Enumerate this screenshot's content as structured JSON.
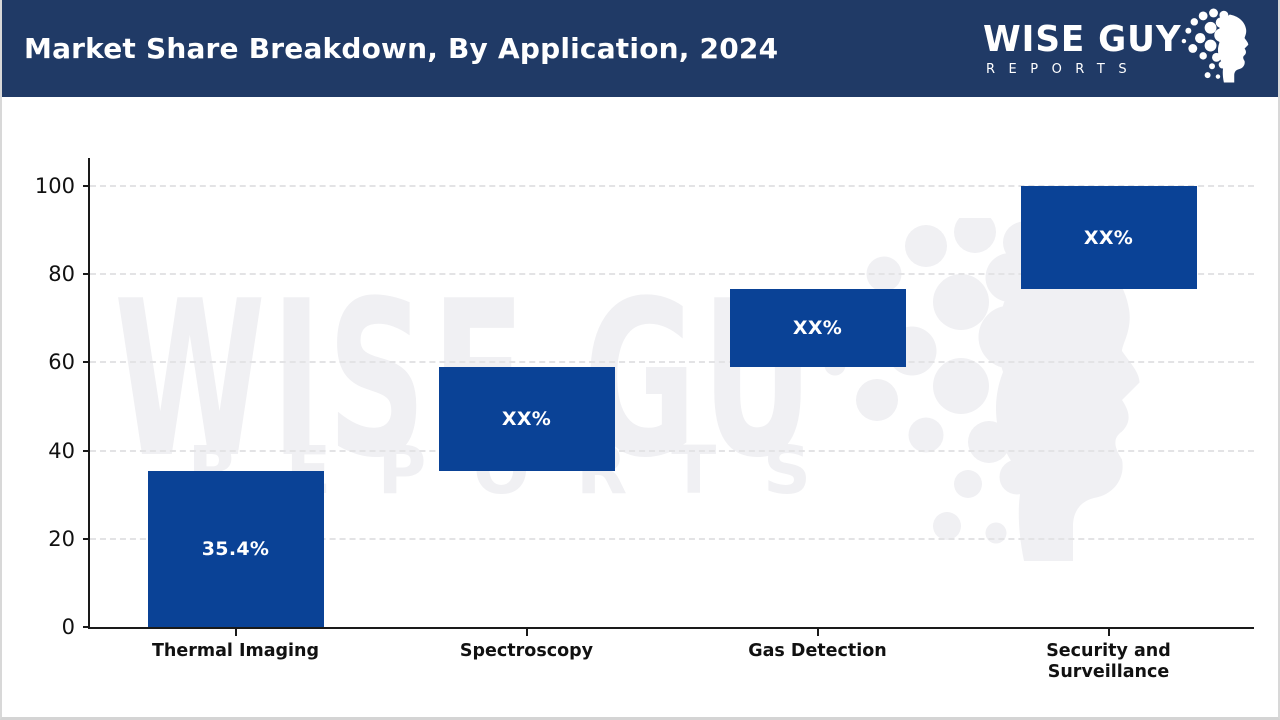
{
  "header": {
    "title": "Market Share Breakdown, By Application, 2024",
    "bg_color": "#203a66",
    "logo": {
      "line1": "WISE GUY",
      "line2": "REPORTS",
      "head_icon": "dotted-face-profile"
    }
  },
  "watermark": {
    "line1": "WISE GU",
    "line2": "REPORTS",
    "head_icon": "dotted-face-profile",
    "color": "#f0f0f3"
  },
  "chart_data": {
    "type": "bar",
    "subtype": "waterfall",
    "title": "Market Share Breakdown, By Application, 2024",
    "categories": [
      "Thermal Imaging",
      "Spectroscopy",
      "Gas Detection",
      "Security and Surveillance"
    ],
    "segments": [
      {
        "category": "Thermal Imaging",
        "start": 0,
        "end": 35.4,
        "label": "35.4%"
      },
      {
        "category": "Spectroscopy",
        "start": 35.4,
        "end": 59.0,
        "label": "XX%"
      },
      {
        "category": "Gas Detection",
        "start": 59.0,
        "end": 76.6,
        "label": "XX%"
      },
      {
        "category": "Security and Surveillance",
        "start": 76.6,
        "end": 100,
        "label": "XX%"
      }
    ],
    "y_ticks": [
      0,
      20,
      40,
      60,
      80,
      100
    ],
    "ylim": [
      0,
      107
    ],
    "xlabel": "",
    "ylabel": "",
    "legend": "none",
    "grid": "horizontal-dashed",
    "bar_color": "#0a4296",
    "bar_label_color": "#ffffff",
    "axis_color": "#1a1a1a"
  }
}
